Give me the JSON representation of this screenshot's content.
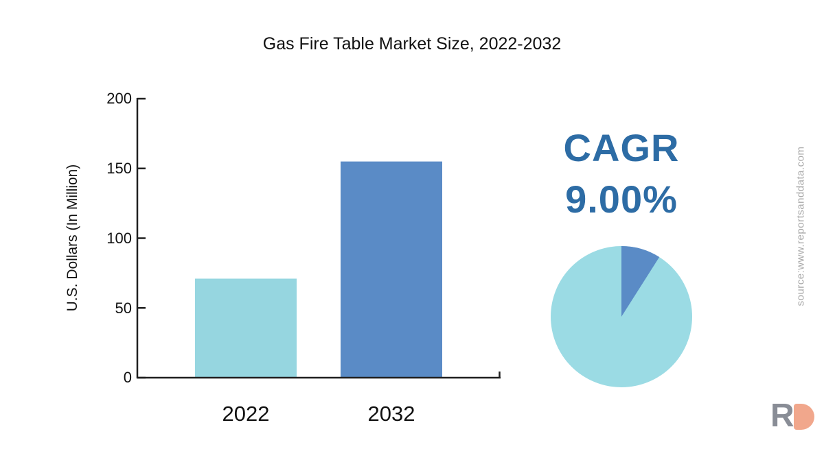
{
  "title": "Gas Fire Table Market Size, 2022-2032",
  "chart_data": [
    {
      "type": "bar",
      "title": "Gas Fire Table Market Size, 2022-2032",
      "categories": [
        "2022",
        "2032"
      ],
      "values": [
        71,
        155
      ],
      "xlabel": "",
      "ylabel": "U.S. Dollars (In Million)",
      "yticks": [
        0,
        50,
        100,
        150,
        200
      ],
      "ylim": [
        0,
        200
      ],
      "bar_colors": [
        "#96d6e0",
        "#5a8bc6"
      ],
      "grid": false,
      "legend": "none"
    },
    {
      "type": "pie",
      "slices": [
        {
          "label": "CAGR 9.00%",
          "value": 9,
          "color": "#5a8bc6"
        },
        {
          "label": "remainder",
          "value": 91,
          "color": "#9bdbe4"
        }
      ],
      "start_angle": "top",
      "direction": "clockwise",
      "legend": "none"
    }
  ],
  "cagr": {
    "label": "CAGR",
    "value": "9.00%"
  },
  "source": "source:www.reportsanddata.com",
  "logo": {
    "text": "R"
  },
  "colors": {
    "light_blue": "#96d6e0",
    "dark_blue": "#5a8bc6",
    "cagr_text_blue": "#2d6ca5",
    "axis_black": "#1f1f1f",
    "source_gray": "#a8a8a8",
    "logo_gray": "#898d96",
    "logo_salmon": "#f1a78c"
  }
}
